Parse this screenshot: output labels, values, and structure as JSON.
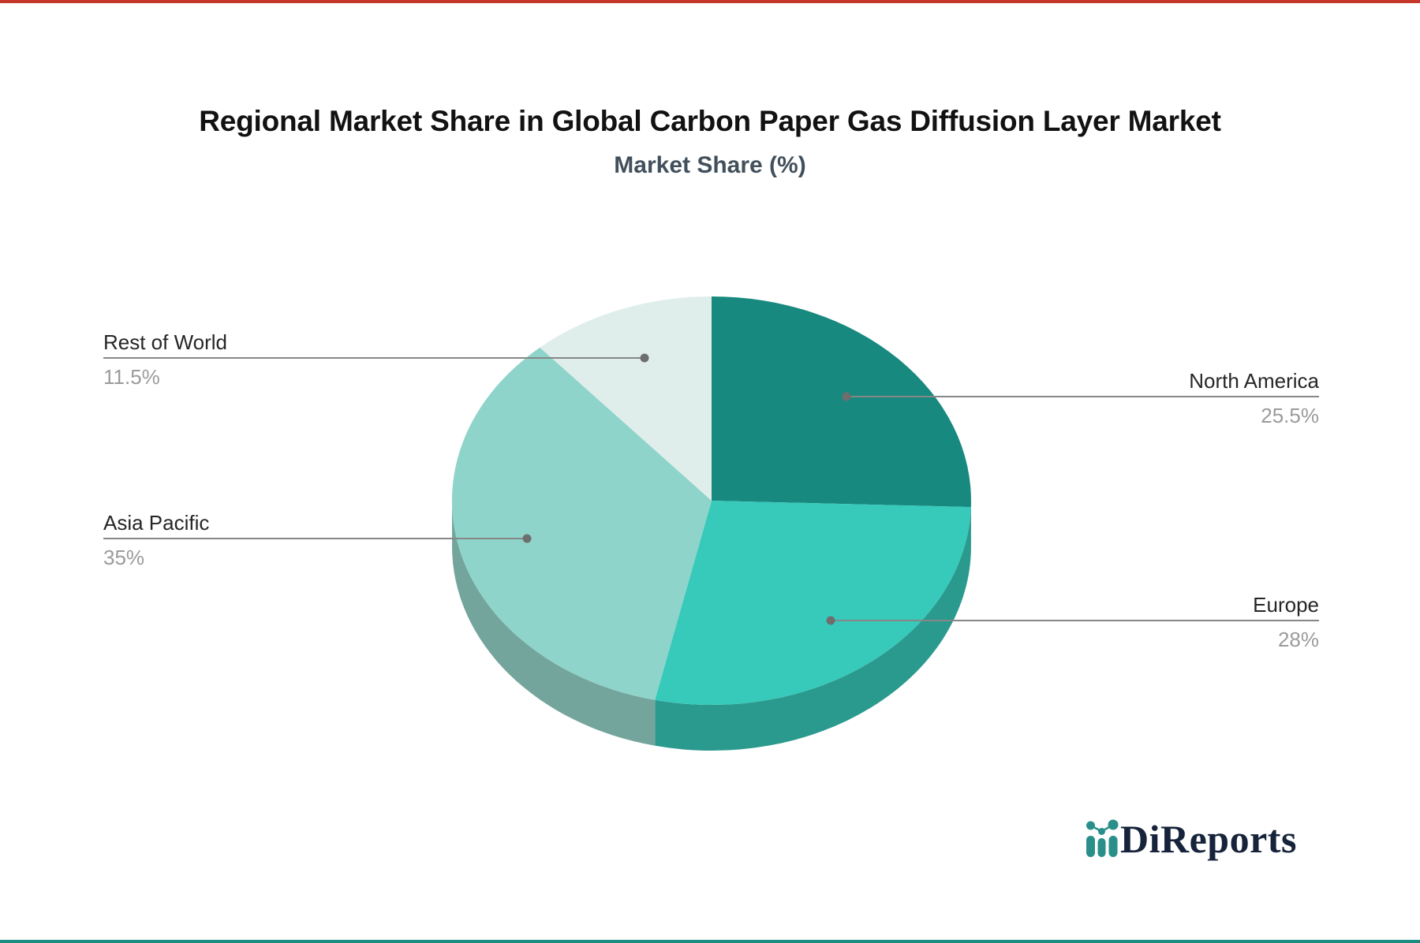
{
  "title": "Regional Market Share in Global Carbon Paper Gas Diffusion Layer Market",
  "subtitle": "Market Share (%)",
  "logo": {
    "text": "DiReports",
    "icon": "mini-bar-chart-icon"
  },
  "colors": {
    "leader_line": "#878787",
    "leader_dot": "#6e6e6e",
    "title": "#121212",
    "subtitle": "#42505c",
    "label_text": "#262626",
    "value_text": "#9b9b9b",
    "top_accent": "#c63529",
    "bottom_accent": "#1b8d80",
    "logo_teal": "#2a8f8a",
    "logo_navy": "#16233a"
  },
  "chart_data": {
    "type": "pie",
    "title": "Regional Market Share in Global Carbon Paper Gas Diffusion Layer Market",
    "subtitle": "Market Share (%)",
    "unit": "%",
    "style": "3d-pie",
    "start_angle_deg": 0,
    "clockwise": true,
    "legend_position": "none",
    "labels_layout": "callout-lines-left-right",
    "slices": [
      {
        "label": "North America",
        "value": 25.5,
        "display_value": "25.5%",
        "color": "#18897F",
        "side_color": "#126B62",
        "label_side": "right"
      },
      {
        "label": "Europe",
        "value": 28,
        "display_value": "28%",
        "color": "#37C9BA",
        "side_color": "#2B9A8E",
        "label_side": "right"
      },
      {
        "label": "Asia Pacific",
        "value": 35,
        "display_value": "35%",
        "color": "#8FD4CA",
        "side_color": "#74A59C",
        "label_side": "left"
      },
      {
        "label": "Rest of World",
        "value": 11.5,
        "display_value": "11.5%",
        "color": "#DFEEEB",
        "side_color": "#AECCC6",
        "label_side": "left"
      }
    ]
  }
}
